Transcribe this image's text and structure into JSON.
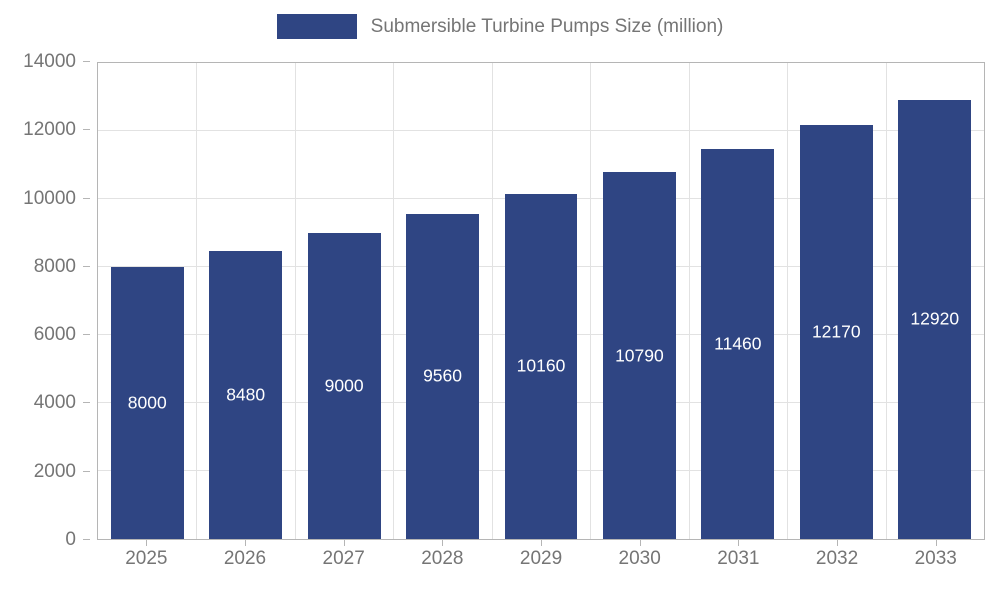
{
  "chart_data": {
    "type": "bar",
    "title": "",
    "legend": {
      "label": "Submersible Turbine Pumps Size (million)",
      "position": "top"
    },
    "categories": [
      "2025",
      "2026",
      "2027",
      "2028",
      "2029",
      "2030",
      "2031",
      "2032",
      "2033"
    ],
    "values": [
      8000,
      8480,
      9000,
      9560,
      10160,
      10790,
      11460,
      12170,
      12920
    ],
    "xlabel": "",
    "ylabel": "",
    "ylim": [
      0,
      14000
    ],
    "yticks": [
      0,
      2000,
      4000,
      6000,
      8000,
      10000,
      12000,
      14000
    ],
    "grid": true,
    "colors": {
      "bar": "#2F4583",
      "value_label": "#ffffff",
      "axis_text": "#757575",
      "grid_line": "#e2e2e2",
      "axis_line": "#b5b5b5",
      "background": "#ffffff"
    }
  }
}
